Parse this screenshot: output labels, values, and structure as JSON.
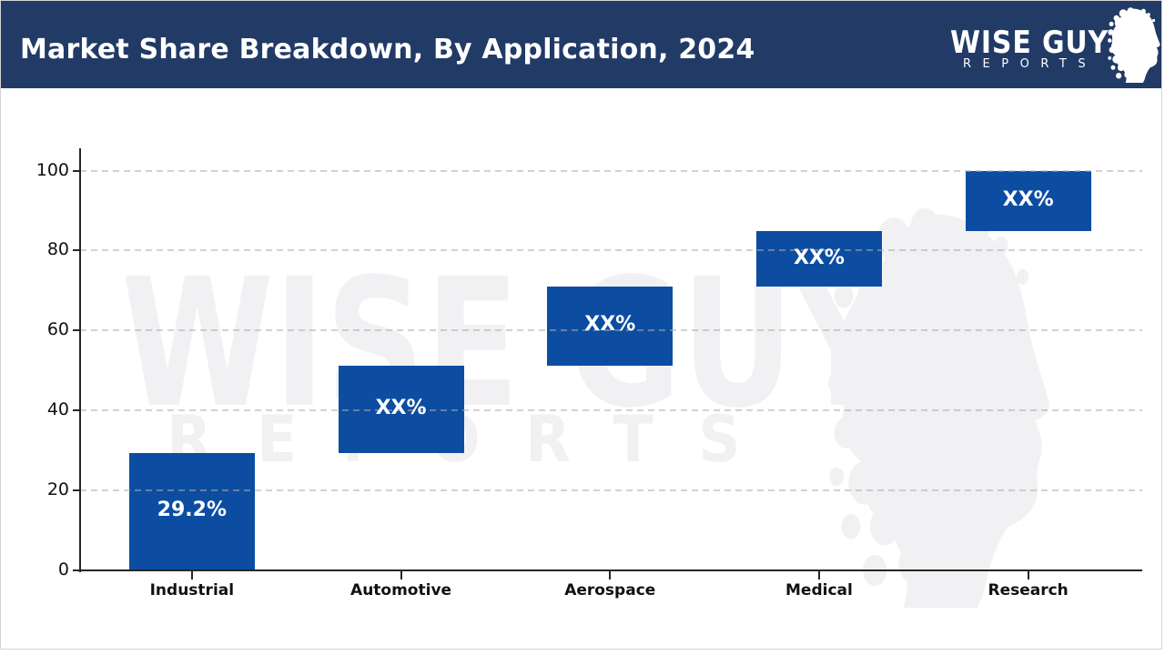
{
  "header": {
    "title": "Market Share Breakdown, By Application, 2024",
    "logo": {
      "line1": "WISE GUY",
      "line2": "REPORTS"
    }
  },
  "watermark": {
    "line1": "WISE GUY",
    "line2": "REPORTS"
  },
  "chart_data": {
    "type": "bar",
    "subtype": "waterfall",
    "title": "Market Share Breakdown, By Application, 2024",
    "categories": [
      "Industrial",
      "Automotive",
      "Aerospace",
      "Medical",
      "Research"
    ],
    "segments": [
      {
        "category": "Industrial",
        "start": 0,
        "end": 29.2,
        "label": "29.2%"
      },
      {
        "category": "Automotive",
        "start": 29.2,
        "end": 51.2,
        "label": "XX%"
      },
      {
        "category": "Aerospace",
        "start": 51.2,
        "end": 70.9,
        "label": "XX%"
      },
      {
        "category": "Medical",
        "start": 70.9,
        "end": 84.8,
        "label": "XX%"
      },
      {
        "category": "Research",
        "start": 84.8,
        "end": 100,
        "label": "XX%"
      }
    ],
    "y_ticks": [
      0,
      20,
      40,
      60,
      80,
      100
    ],
    "ylim": [
      0,
      105.5
    ],
    "xlabel": "",
    "ylabel": "",
    "grid": "horizontal-dashed",
    "legend": "none",
    "bar_color": "#0C4DA2",
    "bar_label_color": "#FFFFFF"
  },
  "colors": {
    "header_bg": "#213A66",
    "bar": "#0C4DA2",
    "axis": "#262626",
    "grid": "#ACACAC",
    "watermark": "#F1F1F3",
    "page_border": "#D4D4D4"
  }
}
